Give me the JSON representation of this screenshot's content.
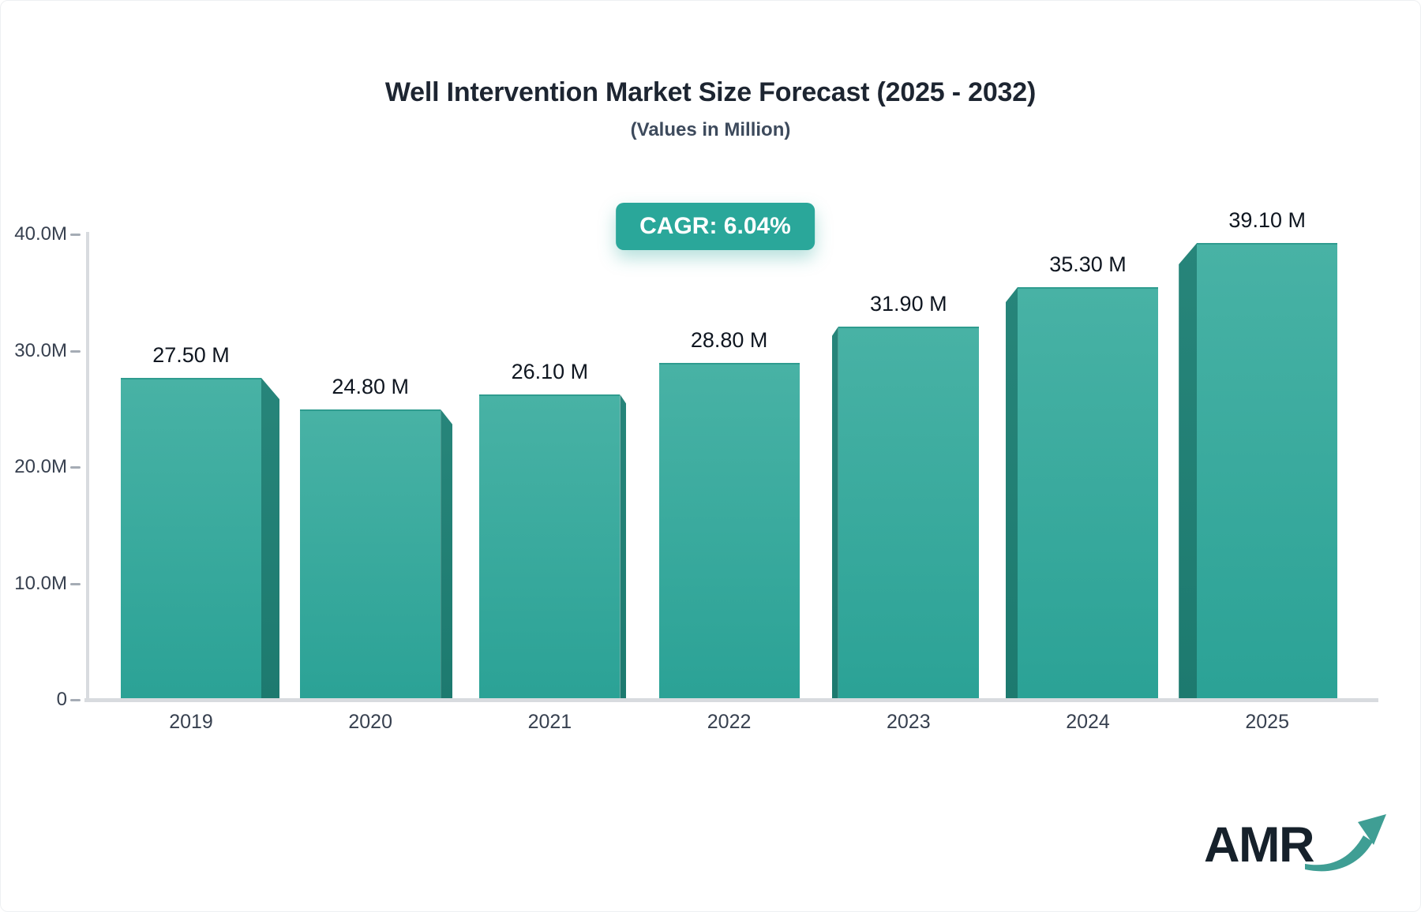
{
  "page": {
    "title": "Well Intervention Market Size Forecast (2025 - 2032)",
    "subtitle": "(Values in Million)",
    "cagr_badge": "CAGR: 6.04%"
  },
  "chart_data": {
    "type": "bar",
    "title": "Well Intervention Market Size Forecast (2025 - 2032)",
    "subtitle": "(Values in Million)",
    "unit": "Million",
    "cagr_percent": 6.04,
    "categories": [
      "2019",
      "2020",
      "2021",
      "2022",
      "2023",
      "2024",
      "2025"
    ],
    "values": [
      27.5,
      24.8,
      26.1,
      28.8,
      31.9,
      35.3,
      39.1
    ],
    "value_labels": [
      "27.50 M",
      "24.80 M",
      "26.10 M",
      "28.80 M",
      "31.90 M",
      "35.30 M",
      "39.10 M"
    ],
    "ylim": [
      0,
      40
    ],
    "yticks": [
      {
        "value": 0,
        "label": "0"
      },
      {
        "value": 10,
        "label": "10.0M"
      },
      {
        "value": 20,
        "label": "20.0M"
      },
      {
        "value": 30,
        "label": "30.0M"
      },
      {
        "value": 40,
        "label": "40.0M"
      }
    ],
    "grid": false,
    "legend_position": "none",
    "style": "3d-perspective-bars-facing-center",
    "colors": {
      "bar_face_top": "#48b2a5",
      "bar_face_bottom": "#2ba296",
      "bar_side_top": "#27857a",
      "bar_side_bottom": "#1d7a6f",
      "badge_background": "#2aa79a",
      "axis_line": "#d8dbdf",
      "tick_text": "#37404f",
      "value_text": "#0f1620",
      "title_text": "#1d2531",
      "subtitle_text": "#3d4a5c"
    }
  },
  "branding": {
    "logo_text": "AMR",
    "logo_arrow_icon": "growth-arrow-icon",
    "logo_text_color": "#16212b",
    "logo_arrow_color": "#3f9e94"
  }
}
